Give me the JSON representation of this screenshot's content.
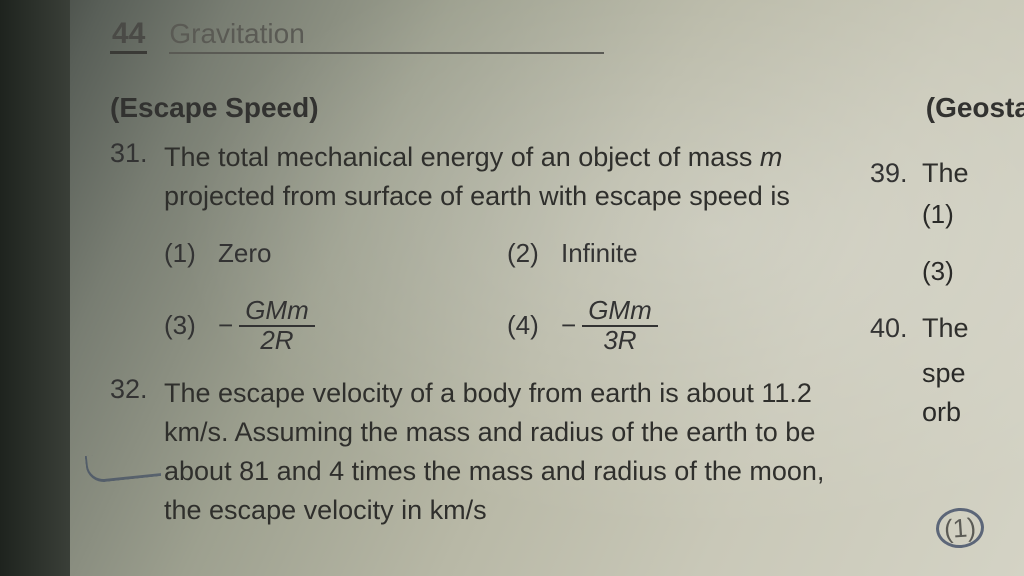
{
  "header": {
    "page_number": "44",
    "chapter_title": "Gravitation"
  },
  "left": {
    "section_title": "(Escape Speed)",
    "q31": {
      "number": "31.",
      "text_a": "The total mechanical energy of an object of mass ",
      "mass_symbol": "m",
      "text_b": " projected from surface of earth with escape speed is",
      "opts": {
        "o1_n": "(1)",
        "o1_t": "Zero",
        "o2_n": "(2)",
        "o2_t": "Infinite",
        "o3_n": "(3)",
        "o3_num": "GMm",
        "o3_den": "2R",
        "o4_n": "(4)",
        "o4_num": "GMm",
        "o4_den": "3R"
      }
    },
    "q32": {
      "number": "32.",
      "text": "The escape velocity of a body from earth is about 11.2 km/s. Assuming the mass and radius of the earth to be about 81 and 4 times the mass and radius of the moon, the escape velocity in km/s"
    }
  },
  "right": {
    "section_title": "(Geosta",
    "q39": {
      "number": "39.",
      "text": "The",
      "opt1": "(1)",
      "opt3": "(3)"
    },
    "q40": {
      "number": "40.",
      "text": "The",
      "line2": "spe",
      "line3": "orb"
    },
    "circled": "(1)"
  },
  "colors": {
    "text": "#2f2f2c",
    "ink": "#2b3a5a"
  }
}
